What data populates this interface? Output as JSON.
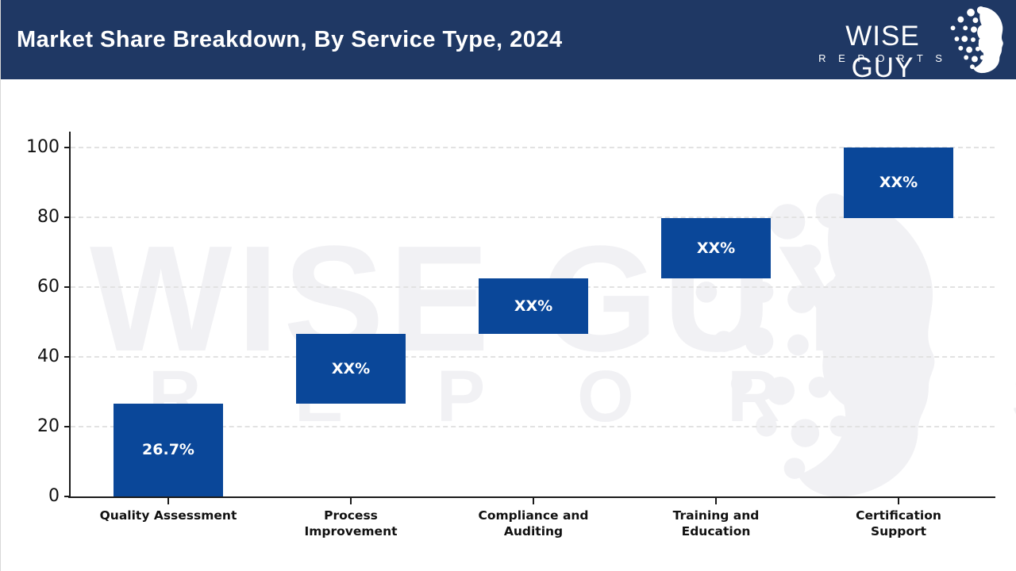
{
  "header": {
    "title": "Market Share Breakdown, By Service Type, 2024",
    "logo": {
      "line1": "WISE GUY",
      "line2": "R E P O R T S",
      "face_icon": "dotted-head-profile"
    }
  },
  "watermark": {
    "line1": "WISE GUY",
    "line2": "R E P O R T S",
    "face_icon": "dotted-head-profile"
  },
  "colors": {
    "header_bg": "#1f3864",
    "bar_fill": "#0a4799",
    "bar_label_text": "#ffffff",
    "grid": "#e2e2e2",
    "axis": "#1a1a1a",
    "watermark": "#f1f1f4"
  },
  "chart_data": {
    "type": "bar",
    "subtype": "waterfall",
    "title": "Market Share Breakdown, By Service Type, 2024",
    "xlabel": "",
    "ylabel": "",
    "ylim": [
      0,
      100
    ],
    "yticks": [
      0,
      20,
      40,
      60,
      80,
      100
    ],
    "grid": "horizontal-dashed",
    "legend": false,
    "categories": [
      "Quality Assessment",
      "Process\nImprovement",
      "Compliance and\nAuditing",
      "Training and\nEducation",
      "Certification\nSupport"
    ],
    "segments": [
      {
        "category": "Quality Assessment",
        "start": 0,
        "end": 26.7,
        "label": "26.7%"
      },
      {
        "category": "Process\nImprovement",
        "start": 26.7,
        "end": 46.7,
        "label": "XX%"
      },
      {
        "category": "Compliance and\nAuditing",
        "start": 46.7,
        "end": 62.5,
        "label": "XX%"
      },
      {
        "category": "Training and\nEducation",
        "start": 62.5,
        "end": 79.8,
        "label": "XX%"
      },
      {
        "category": "Certification\nSupport",
        "start": 79.8,
        "end": 100,
        "label": "XX%"
      }
    ]
  }
}
